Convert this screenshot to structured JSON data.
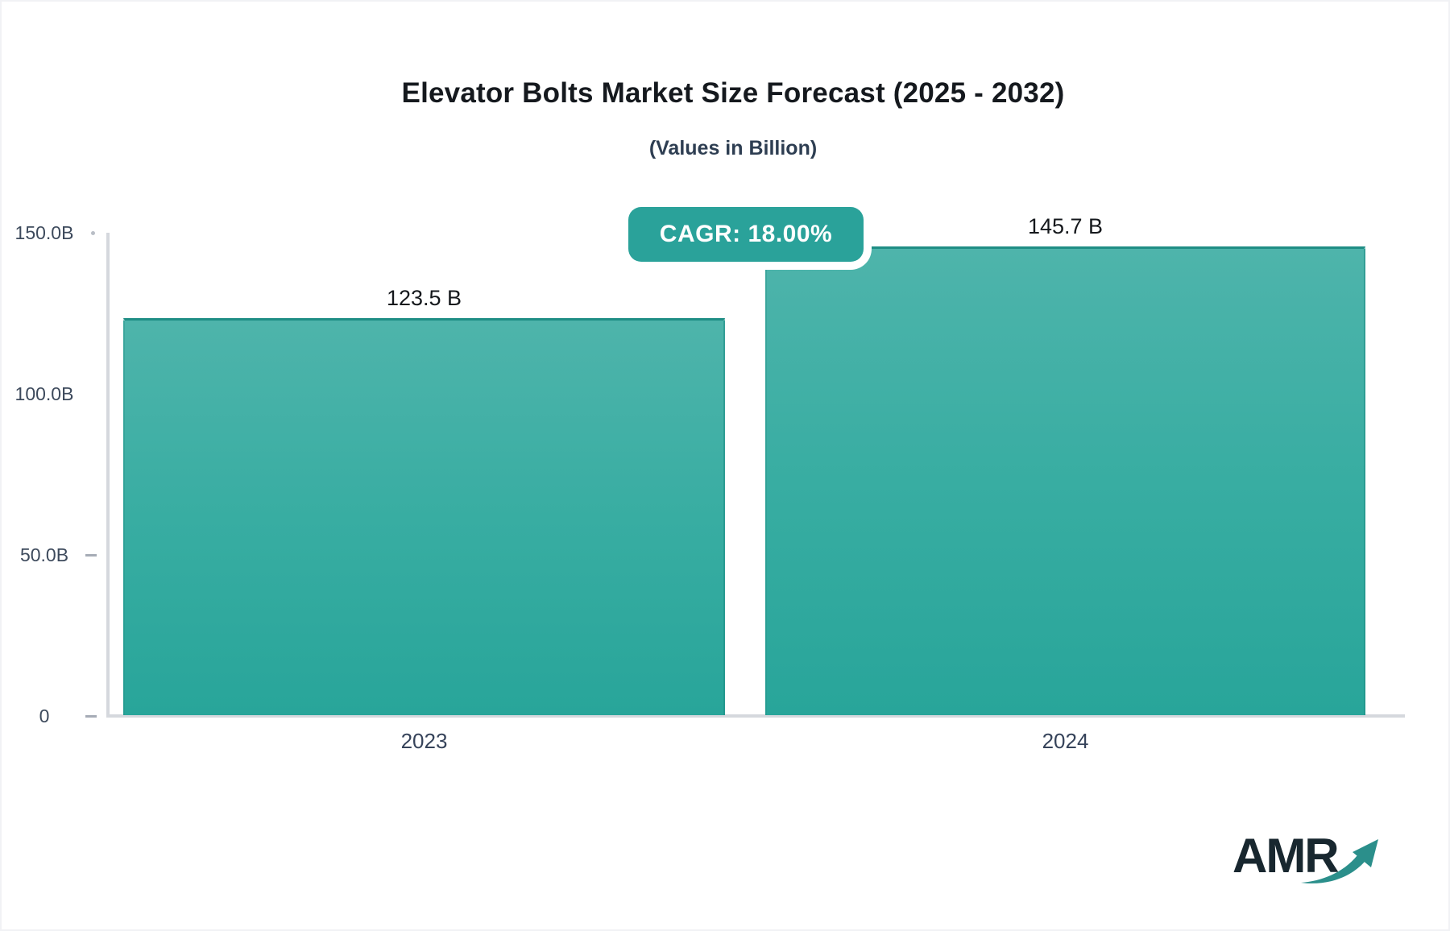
{
  "page": {
    "background": "#ffffff",
    "border_color": "#f1f2f5"
  },
  "chart_data": {
    "type": "bar",
    "title": "Elevator Bolts Market Size Forecast (2025 - 2032)",
    "subtitle": "(Values in Billion)",
    "cagr_label": "CAGR: 18.00%",
    "categories": [
      "2023",
      "2024"
    ],
    "values": [
      123.5,
      145.7
    ],
    "value_labels": [
      "123.5 B",
      "145.7 B"
    ],
    "unit": "Billion",
    "ylim": [
      0,
      150
    ],
    "yticks": [
      {
        "label": "150.0B",
        "value": 150,
        "tick": "dot"
      },
      {
        "label": "100.0B",
        "value": 100,
        "tick": "none"
      },
      {
        "label": "50.0B",
        "value": 50,
        "tick": "dash"
      },
      {
        "label": "0",
        "value": 0,
        "tick": "dash"
      }
    ],
    "grid": false,
    "legend": false,
    "colors": {
      "bar_gradient_top": "#4eb4ab",
      "bar_gradient_bottom": "#28a59a",
      "bar_stroke": "#1f8e85",
      "badge_background": "#2aa29a",
      "badge_text": "#ffffff",
      "axis_line": "#d5d8dd",
      "tick_mark": "#a6acb6",
      "axis_label": "#3d4a5c",
      "value_label": "#15181c",
      "title": "#15191e",
      "subtitle": "#2e3e52"
    }
  },
  "logo": {
    "text": "AMR",
    "text_color": "#18272f",
    "arrow_color": "#2b8f8b",
    "arrow_icon": "growth-arrow-icon"
  }
}
